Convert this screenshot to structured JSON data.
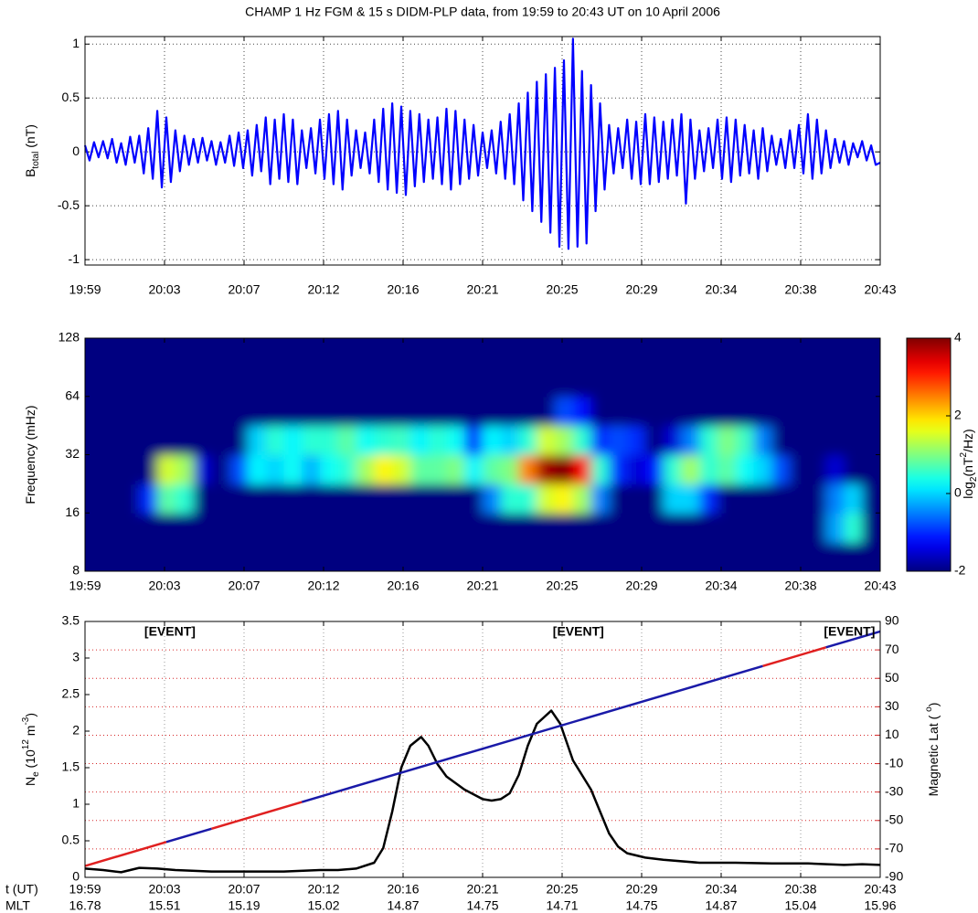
{
  "chart_data": [
    {
      "type": "line",
      "title": "CHAMP 1 Hz FGM & 15 s DIDM-PLP data, from 19:59 to 20:43 UT on 10 April 2006",
      "ylabel": [
        {
          "text": "B"
        },
        {
          "text": "total",
          "shift": "sub"
        },
        {
          "text": " (nT)"
        }
      ],
      "xlim": [
        0,
        44
      ],
      "xticks": [
        {
          "value": 0,
          "label": "19:59"
        },
        {
          "value": 4.4,
          "label": "20:03"
        },
        {
          "value": 8.8,
          "label": "20:07"
        },
        {
          "value": 13.2,
          "label": "20:12"
        },
        {
          "value": 17.6,
          "label": "20:16"
        },
        {
          "value": 22,
          "label": "20:21"
        },
        {
          "value": 26.4,
          "label": "20:25"
        },
        {
          "value": 30.8,
          "label": "20:29"
        },
        {
          "value": 35.2,
          "label": "20:34"
        },
        {
          "value": 39.6,
          "label": "20:38"
        },
        {
          "value": 44,
          "label": "20:43"
        }
      ],
      "ylim": [
        -1.05,
        1.07
      ],
      "yticks": [
        -1,
        -0.5,
        0,
        0.5,
        1
      ],
      "grid": true,
      "x": [
        0,
        0.25,
        0.5,
        0.75,
        1,
        1.25,
        1.5,
        1.75,
        2,
        2.25,
        2.5,
        2.75,
        3,
        3.25,
        3.5,
        3.75,
        4,
        4.25,
        4.5,
        4.75,
        5,
        5.25,
        5.5,
        5.75,
        6,
        6.25,
        6.5,
        6.75,
        7,
        7.25,
        7.5,
        7.75,
        8,
        8.25,
        8.5,
        8.75,
        9,
        9.25,
        9.5,
        9.75,
        10,
        10.25,
        10.5,
        10.75,
        11,
        11.25,
        11.5,
        11.75,
        12,
        12.25,
        12.5,
        12.75,
        13,
        13.25,
        13.5,
        13.75,
        14,
        14.25,
        14.5,
        14.75,
        15,
        15.25,
        15.5,
        15.75,
        16,
        16.25,
        16.5,
        16.75,
        17,
        17.25,
        17.5,
        17.75,
        18,
        18.25,
        18.5,
        18.75,
        19,
        19.25,
        19.5,
        19.75,
        20,
        20.25,
        20.5,
        20.75,
        21,
        21.25,
        21.5,
        21.75,
        22,
        22.25,
        22.5,
        22.75,
        23,
        23.25,
        23.5,
        23.75,
        24,
        24.25,
        24.5,
        24.75,
        25,
        25.25,
        25.5,
        25.75,
        26,
        26.25,
        26.5,
        26.75,
        27,
        27.25,
        27.5,
        27.75,
        28,
        28.25,
        28.5,
        28.75,
        29,
        29.25,
        29.5,
        29.75,
        30,
        30.25,
        30.5,
        30.75,
        31,
        31.25,
        31.5,
        31.75,
        32,
        32.25,
        32.5,
        32.75,
        33,
        33.25,
        33.5,
        33.75,
        34,
        34.25,
        34.5,
        34.75,
        35,
        35.25,
        35.5,
        35.75,
        36,
        36.25,
        36.5,
        36.75,
        37,
        37.25,
        37.5,
        37.75,
        38,
        38.25,
        38.5,
        38.75,
        39,
        39.25,
        39.5,
        39.75,
        40,
        40.25,
        40.5,
        40.75,
        41,
        41.25,
        41.5,
        41.75,
        42,
        42.25,
        42.5,
        42.75,
        43,
        43.25,
        43.5,
        43.75,
        44
      ],
      "series": [
        {
          "color": "#0000ff",
          "values": [
            0.06,
            -0.08,
            0.09,
            -0.05,
            0.1,
            -0.06,
            0.12,
            -0.1,
            0.08,
            -0.12,
            0.14,
            -0.1,
            0.15,
            -0.2,
            0.22,
            -0.25,
            0.38,
            -0.33,
            0.32,
            -0.28,
            0.2,
            -0.18,
            0.15,
            -0.12,
            0.12,
            -0.1,
            0.13,
            -0.08,
            0.1,
            -0.12,
            0.09,
            -0.1,
            0.15,
            -0.13,
            0.18,
            -0.15,
            0.2,
            -0.22,
            0.25,
            -0.18,
            0.32,
            -0.3,
            0.3,
            -0.25,
            0.35,
            -0.28,
            0.3,
            -0.3,
            0.2,
            -0.15,
            0.22,
            -0.2,
            0.3,
            -0.25,
            0.35,
            -0.3,
            0.38,
            -0.35,
            0.3,
            -0.22,
            0.2,
            -0.15,
            0.18,
            -0.2,
            0.3,
            -0.28,
            0.4,
            -0.35,
            0.45,
            -0.38,
            0.42,
            -0.4,
            0.38,
            -0.32,
            0.35,
            -0.28,
            0.3,
            -0.25,
            0.32,
            -0.3,
            0.4,
            -0.35,
            0.38,
            -0.3,
            0.3,
            -0.25,
            0.25,
            -0.22,
            0.18,
            -0.15,
            0.2,
            -0.2,
            0.28,
            -0.25,
            0.35,
            -0.3,
            0.45,
            -0.45,
            0.55,
            -0.55,
            0.65,
            -0.65,
            0.72,
            -0.75,
            0.78,
            -0.88,
            0.85,
            -0.9,
            1.05,
            -0.88,
            0.75,
            -0.85,
            0.62,
            -0.55,
            0.45,
            -0.35,
            0.25,
            -0.2,
            0.22,
            -0.15,
            0.3,
            -0.25,
            0.28,
            -0.3,
            0.35,
            -0.3,
            0.32,
            -0.28,
            0.28,
            -0.25,
            0.3,
            -0.22,
            0.35,
            -0.48,
            0.3,
            -0.25,
            0.2,
            -0.18,
            0.22,
            -0.15,
            0.3,
            -0.25,
            0.32,
            -0.28,
            0.3,
            -0.22,
            0.25,
            -0.2,
            0.2,
            -0.25,
            0.22,
            -0.18,
            0.15,
            -0.12,
            0.12,
            -0.15,
            0.2,
            -0.15,
            0.25,
            -0.2,
            0.35,
            -0.25,
            0.3,
            -0.2,
            0.2,
            -0.15,
            0.12,
            -0.1,
            0.1,
            -0.12,
            0.08,
            -0.05,
            0.1,
            -0.08,
            0.06,
            -0.12,
            -0.1
          ]
        }
      ]
    },
    {
      "type": "heatmap",
      "ylabel": [
        {
          "text": "Frequency (mHz)"
        }
      ],
      "xlim": [
        0,
        44
      ],
      "xticks": [
        {
          "value": 0,
          "label": "19:59"
        },
        {
          "value": 4.4,
          "label": "20:03"
        },
        {
          "value": 8.8,
          "label": "20:07"
        },
        {
          "value": 13.2,
          "label": "20:12"
        },
        {
          "value": 17.6,
          "label": "20:16"
        },
        {
          "value": 22,
          "label": "20:21"
        },
        {
          "value": 26.4,
          "label": "20:25"
        },
        {
          "value": 30.8,
          "label": "20:29"
        },
        {
          "value": 35.2,
          "label": "20:34"
        },
        {
          "value": 39.6,
          "label": "20:38"
        },
        {
          "value": 44,
          "label": "20:43"
        }
      ],
      "ylim": [
        8,
        128
      ],
      "yticks": [
        8,
        16,
        32,
        64,
        128
      ],
      "log_y": true,
      "xbins": [
        0,
        1,
        2,
        3,
        4,
        5,
        6,
        7,
        8,
        9,
        10,
        11,
        12,
        13,
        14,
        15,
        16,
        17,
        18,
        19,
        20,
        21,
        22,
        23,
        24,
        25,
        26,
        27,
        28,
        29,
        30,
        31,
        32,
        33,
        34,
        35,
        36,
        37,
        38,
        39,
        40,
        41,
        42,
        43,
        44
      ],
      "ybins": [
        8,
        11.3,
        16,
        22.6,
        32,
        45.3,
        64,
        90.5,
        128
      ],
      "z": [
        [
          -2,
          -2,
          -2,
          -2,
          -2,
          -2,
          -2,
          -2,
          -2,
          -2,
          -2,
          -2,
          -2,
          -2,
          -2,
          -2,
          -2,
          -2,
          -2,
          -2,
          -2,
          -2,
          -2,
          -2,
          -2,
          -2,
          -2,
          -2,
          -2,
          -2,
          -2,
          -2,
          -2,
          -2,
          -2,
          -2,
          -2,
          -2,
          -2,
          -2,
          -2,
          -2,
          -2,
          -2
        ],
        [
          -2,
          -2,
          -2,
          -2,
          -2,
          -2,
          -2,
          -2,
          -2,
          -2,
          -2,
          -2,
          -2,
          -2,
          -2,
          -2,
          -2,
          -2,
          -2,
          -2,
          -2,
          -2,
          -2,
          -2,
          -2,
          -2,
          -2,
          -2,
          -2,
          -2,
          -2,
          -2,
          -2,
          -2,
          -2,
          -2,
          -2,
          -2,
          -2,
          -2,
          -2,
          -0.3,
          0.5,
          -2
        ],
        [
          -2,
          -2,
          -2,
          -1,
          0.8,
          0.5,
          -2,
          -2,
          -2,
          -2,
          -2,
          -2,
          -2,
          -2,
          -2,
          -2,
          -2,
          -2,
          -2,
          -2,
          -2,
          -2,
          -0.5,
          0.5,
          0.5,
          1.5,
          1.8,
          1.2,
          -0.5,
          -2,
          -2,
          -2,
          0,
          0,
          -1,
          -2,
          -2,
          -2,
          -2,
          -2,
          -2,
          -0.5,
          0,
          -2
        ],
        [
          -2,
          -2,
          -2,
          -2,
          1.5,
          1.2,
          -1.5,
          -2,
          -0.8,
          0.2,
          0,
          0.3,
          -0.2,
          0.3,
          0.5,
          1.2,
          1.8,
          1.5,
          0.8,
          0.8,
          1.0,
          0.2,
          0.8,
          1.0,
          2.5,
          3.8,
          4.0,
          3.2,
          0.5,
          -1,
          -1.5,
          -1.2,
          0.5,
          1.2,
          0.5,
          0.8,
          0.3,
          0,
          -0.8,
          -2,
          -2,
          -1.5,
          -2,
          -2
        ],
        [
          -2,
          -2,
          -2,
          -2,
          -2,
          -2,
          -2,
          -2,
          -2,
          0,
          0.5,
          0.2,
          0.5,
          0.5,
          0.8,
          0.3,
          0.5,
          0.6,
          0.2,
          0.5,
          0.3,
          -1,
          0.2,
          0,
          0.5,
          1.5,
          1.2,
          0.5,
          -1,
          -0.8,
          -1,
          -2,
          -1.5,
          -0.5,
          0.5,
          1.0,
          0.6,
          -0.5,
          -2,
          -2,
          -2,
          -2,
          -2,
          -2
        ],
        [
          -2,
          -2,
          -2,
          -2,
          -2,
          -2,
          -2,
          -2,
          -2,
          -2,
          -2,
          -2,
          -2,
          -2,
          -2,
          -2,
          -2,
          -2,
          -2,
          -2,
          -2,
          -2,
          -2,
          -2,
          -2,
          -2,
          -0.8,
          -1.2,
          -2,
          -2,
          -2,
          -2,
          -2,
          -2,
          -2,
          -2,
          -2,
          -2,
          -2,
          -2,
          -2,
          -2,
          -2,
          -2
        ],
        [
          -2,
          -2,
          -2,
          -2,
          -2,
          -2,
          -2,
          -2,
          -2,
          -2,
          -2,
          -2,
          -2,
          -2,
          -2,
          -2,
          -2,
          -2,
          -2,
          -2,
          -2,
          -2,
          -2,
          -2,
          -2,
          -2,
          -2,
          -2,
          -2,
          -2,
          -2,
          -2,
          -2,
          -2,
          -2,
          -2,
          -2,
          -2,
          -2,
          -2,
          -2,
          -2,
          -2,
          -2
        ],
        [
          -2,
          -2,
          -2,
          -2,
          -2,
          -2,
          -2,
          -2,
          -2,
          -2,
          -2,
          -2,
          -2,
          -2,
          -2,
          -2,
          -2,
          -2,
          -2,
          -2,
          -2,
          -2,
          -2,
          -2,
          -2,
          -2,
          -2,
          -2,
          -2,
          -2,
          -2,
          -2,
          -2,
          -2,
          -2,
          -2,
          -2,
          -2,
          -2,
          -2,
          -2,
          -2,
          -2,
          -2
        ]
      ],
      "colorbar": {
        "zlim": [
          -2,
          4
        ],
        "ticks": [
          -2,
          0,
          2,
          4
        ],
        "colormap": "jet",
        "label": [
          {
            "text": "log"
          },
          {
            "text": "2",
            "shift": "sub"
          },
          {
            "text": "(nT"
          },
          {
            "text": "2",
            "shift": "super"
          },
          {
            "text": "/Hz)"
          }
        ]
      }
    },
    {
      "type": "line",
      "ylabel": [
        {
          "text": "N"
        },
        {
          "text": "e",
          "shift": "sub"
        },
        {
          "text": " (10"
        },
        {
          "text": "12",
          "shift": "super"
        },
        {
          "text": " m"
        },
        {
          "text": "-3",
          "shift": "super"
        },
        {
          "text": ")"
        }
      ],
      "y2label": [
        {
          "text": "Magnetic Lat ( "
        },
        {
          "text": "o",
          "shift": "super"
        },
        {
          "text": ")"
        }
      ],
      "y2color": "#d62728",
      "xlim": [
        0,
        44
      ],
      "xticks": [
        {
          "value": 0,
          "label": "19:59"
        },
        {
          "value": 4.4,
          "label": "20:03"
        },
        {
          "value": 8.8,
          "label": "20:07"
        },
        {
          "value": 13.2,
          "label": "20:12"
        },
        {
          "value": 17.6,
          "label": "20:16"
        },
        {
          "value": 22,
          "label": "20:21"
        },
        {
          "value": 26.4,
          "label": "20:25"
        },
        {
          "value": 30.8,
          "label": "20:29"
        },
        {
          "value": 35.2,
          "label": "20:34"
        },
        {
          "value": 39.6,
          "label": "20:38"
        },
        {
          "value": 44,
          "label": "20:43"
        }
      ],
      "xtick_row_labels": [
        "t (UT)",
        "MLT"
      ],
      "mlt_ticks": [
        16.78,
        15.51,
        15.19,
        15.02,
        14.87,
        14.75,
        14.71,
        14.75,
        14.87,
        15.04,
        15.96
      ],
      "ylim": [
        0,
        3.5
      ],
      "yticks": [
        0,
        0.5,
        1,
        1.5,
        2,
        2.5,
        3,
        3.5
      ],
      "y2lim": [
        -90,
        90
      ],
      "y2ticks": [
        -90,
        -70,
        -50,
        -30,
        -10,
        10,
        30,
        50,
        70,
        90
      ],
      "grid": true,
      "annotations": [
        {
          "text": "[EVENT]",
          "x": 4.7
        },
        {
          "text": "[EVENT]",
          "x": 27.3
        },
        {
          "text": "[EVENT]",
          "x": 42.3
        }
      ],
      "annotation_color": "#2233bb",
      "series": [
        {
          "color": "#000000",
          "axis": "y",
          "x": [
            0,
            1,
            2,
            3,
            4,
            5,
            7,
            9,
            11,
            13,
            14,
            15,
            16,
            16.5,
            17,
            17.5,
            18,
            18.6,
            19,
            19.5,
            20,
            21,
            22,
            22.5,
            23,
            23.5,
            24,
            24.5,
            25,
            25.8,
            26.3,
            27,
            27.5,
            28,
            28.5,
            29,
            29.5,
            30,
            31,
            32,
            34,
            36,
            38,
            40,
            42,
            43,
            44
          ],
          "values": [
            0.12,
            0.1,
            0.07,
            0.13,
            0.12,
            0.1,
            0.08,
            0.08,
            0.08,
            0.1,
            0.1,
            0.12,
            0.2,
            0.4,
            0.9,
            1.5,
            1.8,
            1.92,
            1.8,
            1.55,
            1.38,
            1.2,
            1.07,
            1.05,
            1.07,
            1.15,
            1.4,
            1.8,
            2.1,
            2.28,
            2.1,
            1.6,
            1.4,
            1.2,
            0.9,
            0.6,
            0.42,
            0.33,
            0.27,
            0.24,
            0.2,
            0.2,
            0.19,
            0.19,
            0.17,
            0.18,
            0.17
          ]
        },
        {
          "color": "#e02020",
          "axis": "y2",
          "x": [
            0,
            4.5,
            5.75,
            7,
            12,
            24.75,
            37.5,
            41
          ],
          "values": [
            -82,
            -65.1,
            null,
            -55.8,
            -37,
            null,
            58.6,
            71.8
          ]
        },
        {
          "color": "#1a1aa8",
          "axis": "y2",
          "x": [
            4.5,
            7,
            9.5,
            12,
            37.5,
            39.25,
            41,
            44
          ],
          "values": [
            -65.1,
            -55.8,
            null,
            -37,
            58.6,
            null,
            71.8,
            83
          ]
        }
      ]
    }
  ]
}
